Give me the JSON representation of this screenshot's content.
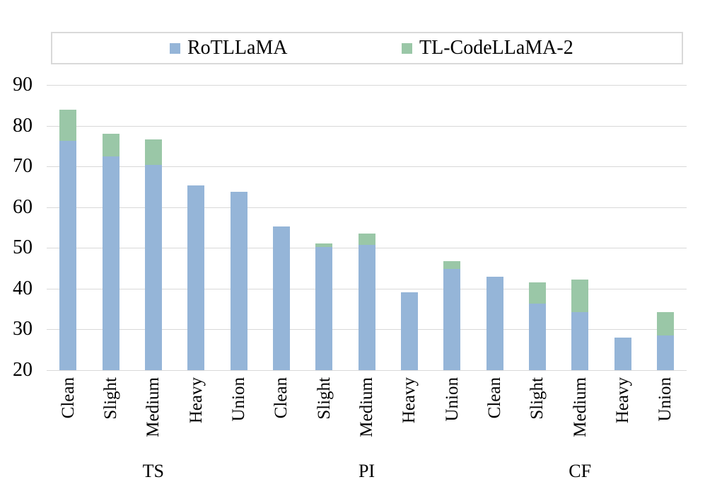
{
  "colors": {
    "background": "#FFFFFF",
    "gridline": "#D9D9D9",
    "legend_border": "#D9D9D9",
    "text": "#000000",
    "series_blue": "#95B5D8",
    "series_green": "#9AC7A7"
  },
  "legend": {
    "items": [
      {
        "label": "RoTLLaMA",
        "color": "#95B5D8"
      },
      {
        "label": "TL-CodeLLaMA-2",
        "color": "#9AC7A7"
      }
    ]
  },
  "chart_data": {
    "type": "bar",
    "stacked": true,
    "title": "",
    "xlabel": "",
    "ylabel": "",
    "ylim": [
      20,
      90
    ],
    "yticks": [
      20,
      30,
      40,
      50,
      60,
      70,
      80,
      90
    ],
    "grid": true,
    "legend_position": "top",
    "categories": [
      "Clean",
      "Slight",
      "Medium",
      "Heavy",
      "Union",
      "Clean",
      "Slight",
      "Medium",
      "Heavy",
      "Union",
      "Clean",
      "Slight",
      "Medium",
      "Heavy",
      "Union"
    ],
    "group_labels": [
      {
        "text": "TS",
        "category_index": 2
      },
      {
        "text": "PI",
        "category_index": 7
      },
      {
        "text": "CF",
        "category_index": 12
      }
    ],
    "series": [
      {
        "name": "RoTLLaMA",
        "color": "#95B5D8",
        "values": [
          76.3,
          72.4,
          70.4,
          65.4,
          63.8,
          55.3,
          50.2,
          50.7,
          39.1,
          44.8,
          43.0,
          36.3,
          34.2,
          28.0,
          28.5
        ]
      },
      {
        "name": "TL-CodeLLaMA-2",
        "color": "#9AC7A7",
        "stacked_on": "RoTLLaMA",
        "values": [
          7.7,
          5.6,
          6.2,
          0,
          0,
          0,
          0.9,
          2.8,
          0,
          1.9,
          0,
          5.2,
          8.0,
          0,
          5.8
        ]
      }
    ],
    "stack_totals": [
      84.0,
      78.0,
      76.6,
      65.4,
      63.8,
      55.3,
      51.1,
      53.5,
      39.1,
      46.7,
      43.0,
      41.5,
      42.2,
      28.0,
      34.3
    ]
  }
}
